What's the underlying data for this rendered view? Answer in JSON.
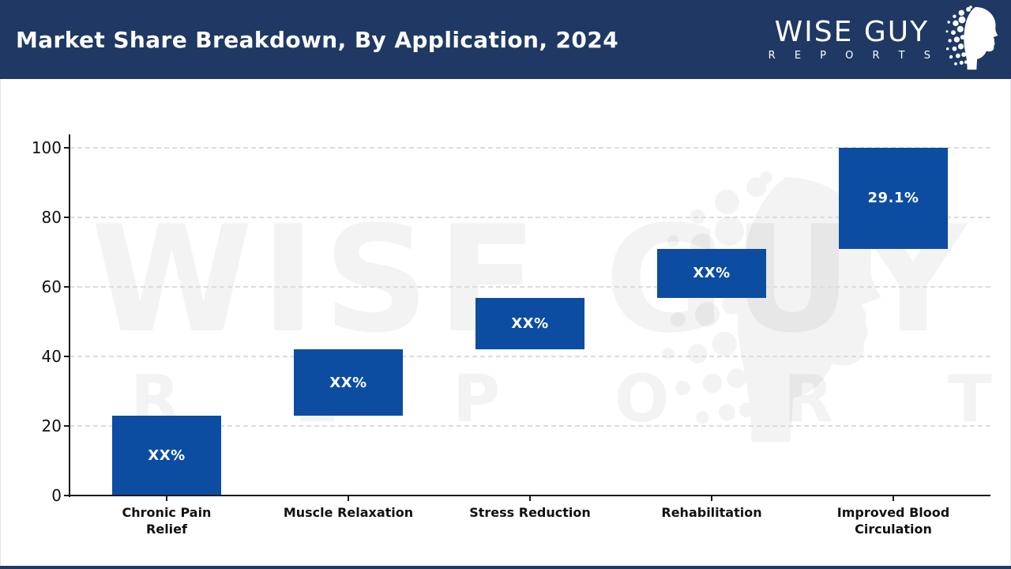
{
  "header": {
    "title": "Market Share Breakdown, By Application, 2024",
    "logo_line1": "WISE GUY",
    "logo_line2": "R E P O R T S"
  },
  "watermark": {
    "line1": "WISE GUY",
    "line2": "R E P O R T S"
  },
  "colors": {
    "header_background": "#1f3864",
    "bar_fill": "#0c4da2",
    "bar_label_text": "#ffffff",
    "gridline": "#dcdcdc",
    "axis": "#1a1a1a",
    "footer_strip": "#1f3864"
  },
  "chart_data": {
    "type": "bar",
    "subtype": "waterfall",
    "title": "Market Share Breakdown, By Application, 2024",
    "categories": [
      "Chronic Pain\nRelief",
      "Muscle Relaxation",
      "Stress Reduction",
      "Rehabilitation",
      "Improved Blood\nCirculation"
    ],
    "bar_labels": [
      "XX%",
      "XX%",
      "XX%",
      "XX%",
      "29.1%"
    ],
    "starts": [
      0,
      22.9,
      42.0,
      56.8,
      70.9
    ],
    "values": [
      22.9,
      19.1,
      14.8,
      14.1,
      29.1
    ],
    "xlabel": "",
    "ylabel": "",
    "ylim": [
      0,
      100
    ],
    "yticks": [
      0,
      20,
      40,
      60,
      80,
      100
    ],
    "grid": "horizontal-dashed",
    "legend": "none"
  }
}
